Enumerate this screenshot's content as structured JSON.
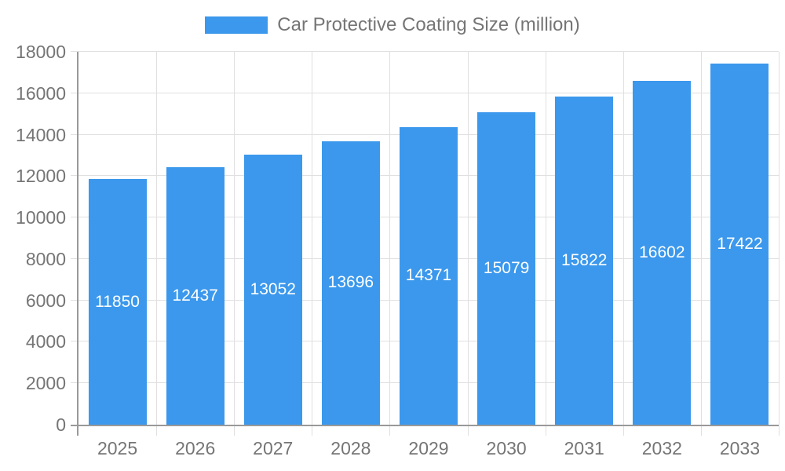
{
  "chart_data": {
    "type": "bar",
    "title": "Car Protective Coating Size (million)",
    "categories": [
      "2025",
      "2026",
      "2027",
      "2028",
      "2029",
      "2030",
      "2031",
      "2032",
      "2033"
    ],
    "values": [
      11850,
      12437,
      13052,
      13696,
      14371,
      15079,
      15822,
      16602,
      17422
    ],
    "xlabel": "",
    "ylabel": "",
    "ylim": [
      0,
      18000
    ],
    "ytick_step": 2000,
    "yticks": [
      0,
      2000,
      4000,
      6000,
      8000,
      10000,
      12000,
      14000,
      16000,
      18000
    ],
    "grid": true,
    "legend_position": "top",
    "colors": {
      "bar": "#3B98EC",
      "bar_label": "#FFFFFF",
      "axis": "#999999",
      "grid": "#E0E0E0",
      "text": "#757575",
      "background": "#FFFFFF"
    }
  }
}
